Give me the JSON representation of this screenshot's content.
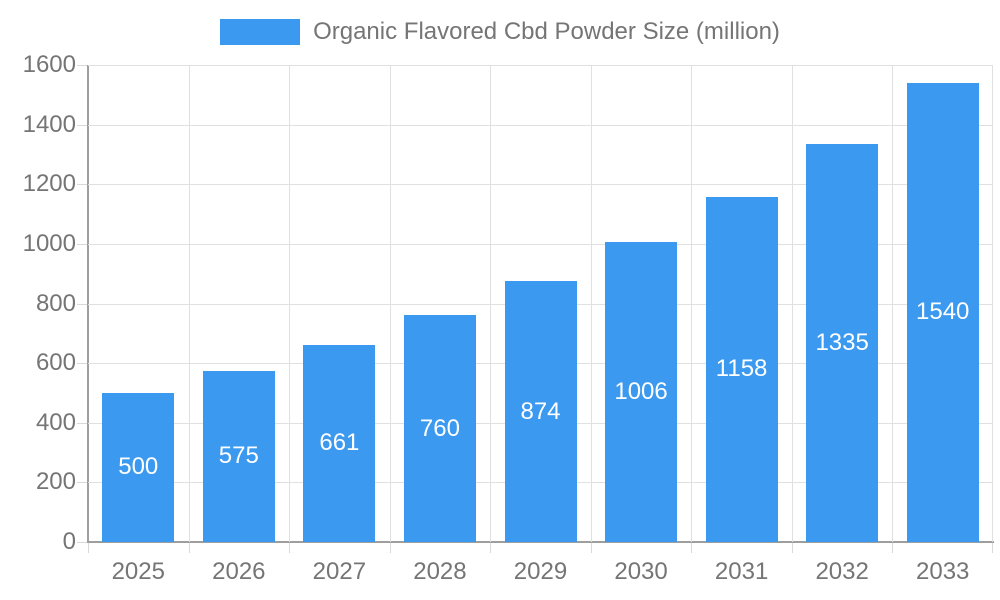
{
  "colors": {
    "bar": "#3B99F0",
    "axis_text": "#757575",
    "grid_line": "#e0e0e0",
    "axis_line": "#9e9e9e",
    "tick_mark": "#d9d9d9",
    "bar_value_label": "#ffffff",
    "background": "#ffffff"
  },
  "legend": {
    "label": "Organic Flavored Cbd Powder Size (million)"
  },
  "chart_data": {
    "type": "bar",
    "title": "Organic Flavored Cbd Powder Size (million)",
    "series_name": "Organic Flavored Cbd Powder Size (million)",
    "categories": [
      "2025",
      "2026",
      "2027",
      "2028",
      "2029",
      "2030",
      "2031",
      "2032",
      "2033"
    ],
    "values": [
      500,
      575,
      661,
      760,
      874,
      1006,
      1158,
      1335,
      1540
    ],
    "bar_value_labels": [
      "500",
      "575",
      "661",
      "760",
      "874",
      "1006",
      "1158",
      "1335",
      "1540"
    ],
    "xlabel": "",
    "ylabel": "",
    "ylim": [
      0,
      1600
    ],
    "yticks": [
      0,
      200,
      400,
      600,
      800,
      1000,
      1200,
      1400,
      1600
    ],
    "grid": "on",
    "legend_position": "top-center",
    "bar_label_position": "inside-center"
  }
}
